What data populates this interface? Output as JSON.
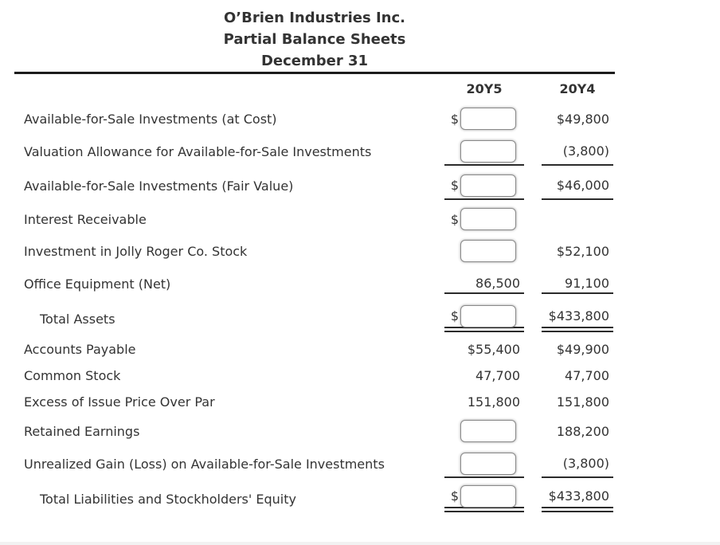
{
  "title": {
    "company": "O’Brien Industries Inc.",
    "report": "Partial Balance Sheets",
    "date": "December 31"
  },
  "columns": {
    "y5": "20Y5",
    "y4": "20Y4"
  },
  "colors": {
    "text": "#333333",
    "divider_line": "#1c1c1c",
    "input_border": "#8a8a8a"
  },
  "table": {
    "dollar_symbol": "$",
    "rows": [
      {
        "id": "afs-investments-at-cost",
        "label": "Available-for-Sale Investments (at Cost)",
        "indent": false,
        "underline": "none",
        "y5": {
          "type": "input",
          "dollar": true,
          "value": ""
        },
        "y4": {
          "type": "text",
          "value": "$49,800"
        }
      },
      {
        "id": "valuation-allowance-afs",
        "label": "Valuation Allowance for Available-for-Sale Investments",
        "indent": false,
        "underline": "single",
        "y5": {
          "type": "input",
          "dollar": false,
          "value": ""
        },
        "y4": {
          "type": "text",
          "value": "(3,800)"
        }
      },
      {
        "id": "afs-investments-fair-value",
        "label": "Available-for-Sale Investments (Fair Value)",
        "indent": false,
        "underline": "single",
        "y5": {
          "type": "input",
          "dollar": true,
          "value": ""
        },
        "y4": {
          "type": "text",
          "value": "$46,000"
        }
      },
      {
        "id": "interest-receivable",
        "label": "Interest Receivable",
        "indent": false,
        "underline": "none",
        "y5": {
          "type": "input",
          "dollar": true,
          "value": ""
        },
        "y4": {
          "type": "empty"
        }
      },
      {
        "id": "investment-jolly-roger-stock",
        "label": "Investment in Jolly Roger Co. Stock",
        "indent": false,
        "underline": "none",
        "y5": {
          "type": "input",
          "dollar": false,
          "value": ""
        },
        "y4": {
          "type": "text",
          "value": "$52,100"
        }
      },
      {
        "id": "office-equipment-net",
        "label": "Office Equipment (Net)",
        "indent": false,
        "underline": "single",
        "y5": {
          "type": "text",
          "value": "86,500"
        },
        "y4": {
          "type": "text",
          "value": "91,100"
        }
      },
      {
        "id": "total-assets",
        "label": "Total Assets",
        "indent": true,
        "underline": "double",
        "y5": {
          "type": "input",
          "dollar": true,
          "value": ""
        },
        "y4": {
          "type": "text",
          "value": "$433,800"
        }
      },
      {
        "id": "accounts-payable",
        "label": "Accounts Payable",
        "indent": false,
        "underline": "none",
        "y5": {
          "type": "text",
          "value": "$55,400"
        },
        "y4": {
          "type": "text",
          "value": "$49,900"
        }
      },
      {
        "id": "common-stock",
        "label": "Common Stock",
        "indent": false,
        "underline": "none",
        "y5": {
          "type": "text",
          "value": "47,700"
        },
        "y4": {
          "type": "text",
          "value": "47,700"
        }
      },
      {
        "id": "excess-issue-price-over-par",
        "label": "Excess of Issue Price Over Par",
        "indent": false,
        "underline": "none",
        "y5": {
          "type": "text",
          "value": "151,800"
        },
        "y4": {
          "type": "text",
          "value": "151,800"
        }
      },
      {
        "id": "retained-earnings",
        "label": "Retained Earnings",
        "indent": false,
        "underline": "none",
        "y5": {
          "type": "input",
          "dollar": false,
          "value": ""
        },
        "y4": {
          "type": "text",
          "value": "188,200"
        }
      },
      {
        "id": "unrealized-gain-loss-afs",
        "label": "Unrealized Gain (Loss) on Available-for-Sale Investments",
        "indent": false,
        "underline": "single",
        "y5": {
          "type": "input",
          "dollar": false,
          "value": ""
        },
        "y4": {
          "type": "text",
          "value": "(3,800)"
        }
      },
      {
        "id": "total-liabilities-and-stockholders-equity",
        "label": "Total Liabilities and Stockholders' Equity",
        "indent": true,
        "underline": "double",
        "y5": {
          "type": "input",
          "dollar": true,
          "value": ""
        },
        "y4": {
          "type": "text",
          "value": "$433,800"
        }
      }
    ]
  }
}
